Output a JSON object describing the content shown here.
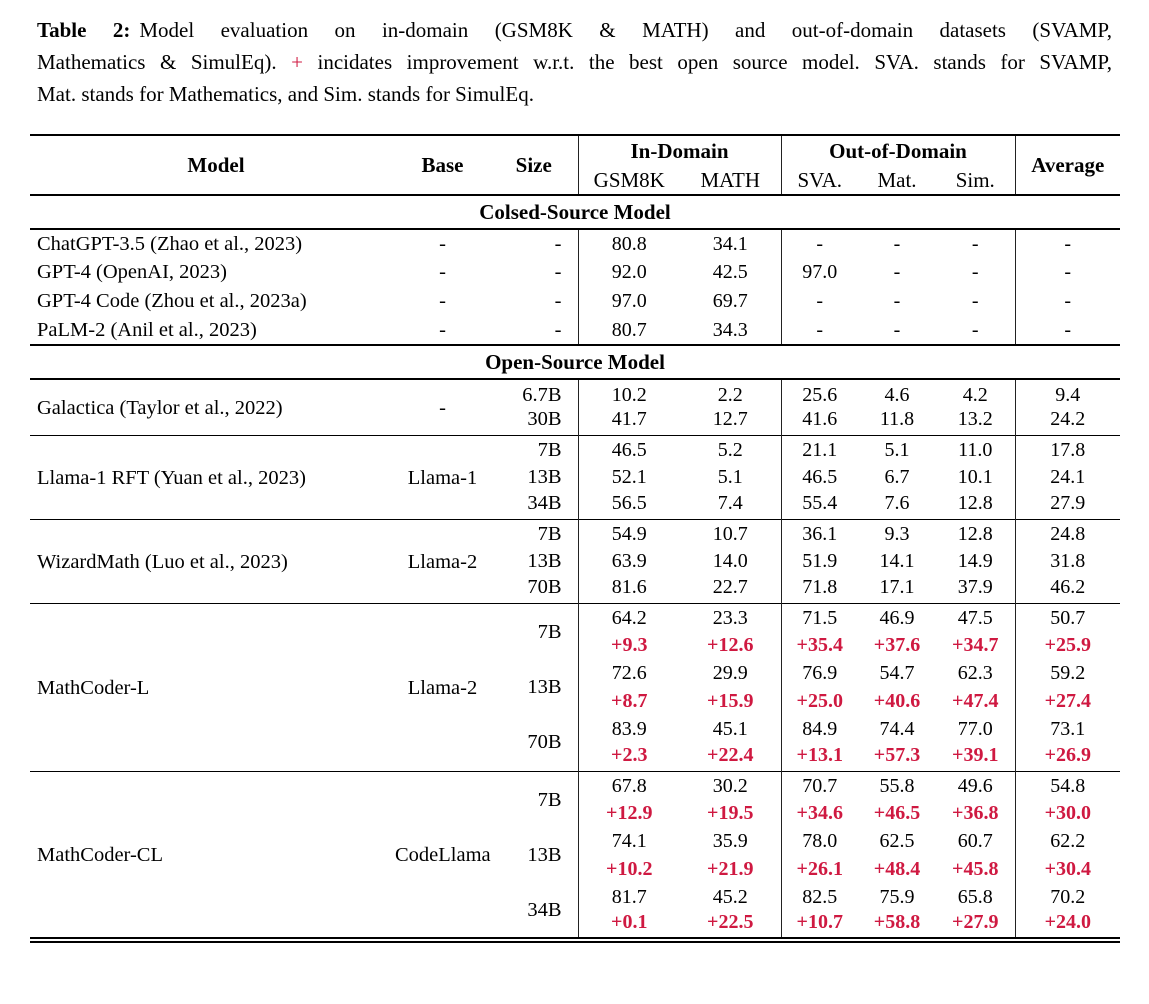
{
  "colors": {
    "improvement_red": "#cf1941"
  },
  "caption": {
    "label": "Table 2:",
    "line1": "Model evaluation on in-domain (GSM8K & MATH) and out-of-domain datasets (SVAMP,",
    "line2_pre": "Mathematics & SimulEq). ",
    "line2_plus": "+",
    "line2_post": " incidates improvement w.r.t. the best open source model. SVA. stands for SVAMP,",
    "line3": "Mat. stands for Mathematics, and Sim. stands for SimulEq."
  },
  "table": {
    "header": {
      "model": "Model",
      "base": "Base",
      "size": "Size",
      "in_domain": "In-Domain",
      "out_of_domain": "Out-of-Domain",
      "average": "Average",
      "sub": [
        "GSM8K",
        "MATH",
        "SVA.",
        "Mat.",
        "Sim."
      ]
    },
    "sections": [
      {
        "title": "Colsed-Source Model",
        "groups": [
          {
            "model": "ChatGPT-3.5 (Zhao et al., 2023)",
            "base": "-",
            "rows": [
              {
                "size": "-",
                "values": [
                  "80.8",
                  "34.1",
                  "-",
                  "-",
                  "-",
                  "-"
                ]
              }
            ]
          },
          {
            "model": "GPT-4 (OpenAI, 2023)",
            "base": "-",
            "rows": [
              {
                "size": "-",
                "values": [
                  "92.0",
                  "42.5",
                  "97.0",
                  "-",
                  "-",
                  "-"
                ]
              }
            ]
          },
          {
            "model": "GPT-4 Code (Zhou et al., 2023a)",
            "base": "-",
            "rows": [
              {
                "size": "-",
                "values": [
                  "97.0",
                  "69.7",
                  "-",
                  "-",
                  "-",
                  "-"
                ]
              }
            ]
          },
          {
            "model": "PaLM-2 (Anil et al., 2023)",
            "base": "-",
            "rows": [
              {
                "size": "-",
                "values": [
                  "80.7",
                  "34.3",
                  "-",
                  "-",
                  "-",
                  "-"
                ]
              }
            ]
          }
        ]
      },
      {
        "title": "Open-Source Model",
        "groups": [
          {
            "model": "Galactica (Taylor et al., 2022)",
            "base": "-",
            "rows": [
              {
                "size": "6.7B",
                "values": [
                  "10.2",
                  "2.2",
                  "25.6",
                  "4.6",
                  "4.2",
                  "9.4"
                ]
              },
              {
                "size": "30B",
                "values": [
                  "41.7",
                  "12.7",
                  "41.6",
                  "11.8",
                  "13.2",
                  "24.2"
                ]
              }
            ]
          },
          {
            "model": "Llama-1 RFT (Yuan et al., 2023)",
            "base": "Llama-1",
            "rows": [
              {
                "size": "7B",
                "values": [
                  "46.5",
                  "5.2",
                  "21.1",
                  "5.1",
                  "11.0",
                  "17.8"
                ]
              },
              {
                "size": "13B",
                "values": [
                  "52.1",
                  "5.1",
                  "46.5",
                  "6.7",
                  "10.1",
                  "24.1"
                ]
              },
              {
                "size": "34B",
                "values": [
                  "56.5",
                  "7.4",
                  "55.4",
                  "7.6",
                  "12.8",
                  "27.9"
                ]
              }
            ]
          },
          {
            "model": "WizardMath (Luo et al., 2023)",
            "base": "Llama-2",
            "rows": [
              {
                "size": "7B",
                "values": [
                  "54.9",
                  "10.7",
                  "36.1",
                  "9.3",
                  "12.8",
                  "24.8"
                ]
              },
              {
                "size": "13B",
                "values": [
                  "63.9",
                  "14.0",
                  "51.9",
                  "14.1",
                  "14.9",
                  "31.8"
                ]
              },
              {
                "size": "70B",
                "values": [
                  "81.6",
                  "22.7",
                  "71.8",
                  "17.1",
                  "37.9",
                  "46.2"
                ]
              }
            ]
          },
          {
            "model": "MathCoder-L",
            "base": "Llama-2",
            "rows": [
              {
                "size": "7B",
                "values": [
                  "64.2",
                  "23.3",
                  "71.5",
                  "46.9",
                  "47.5",
                  "50.7"
                ],
                "improvement": [
                  "+9.3",
                  "+12.6",
                  "+35.4",
                  "+37.6",
                  "+34.7",
                  "+25.9"
                ]
              },
              {
                "size": "13B",
                "values": [
                  "72.6",
                  "29.9",
                  "76.9",
                  "54.7",
                  "62.3",
                  "59.2"
                ],
                "improvement": [
                  "+8.7",
                  "+15.9",
                  "+25.0",
                  "+40.6",
                  "+47.4",
                  "+27.4"
                ]
              },
              {
                "size": "70B",
                "values": [
                  "83.9",
                  "45.1",
                  "84.9",
                  "74.4",
                  "77.0",
                  "73.1"
                ],
                "improvement": [
                  "+2.3",
                  "+22.4",
                  "+13.1",
                  "+57.3",
                  "+39.1",
                  "+26.9"
                ]
              }
            ]
          },
          {
            "model": "MathCoder-CL",
            "base": "CodeLlama",
            "rows": [
              {
                "size": "7B",
                "values": [
                  "67.8",
                  "30.2",
                  "70.7",
                  "55.8",
                  "49.6",
                  "54.8"
                ],
                "improvement": [
                  "+12.9",
                  "+19.5",
                  "+34.6",
                  "+46.5",
                  "+36.8",
                  "+30.0"
                ]
              },
              {
                "size": "13B",
                "values": [
                  "74.1",
                  "35.9",
                  "78.0",
                  "62.5",
                  "60.7",
                  "62.2"
                ],
                "improvement": [
                  "+10.2",
                  "+21.9",
                  "+26.1",
                  "+48.4",
                  "+45.8",
                  "+30.4"
                ]
              },
              {
                "size": "34B",
                "values": [
                  "81.7",
                  "45.2",
                  "82.5",
                  "75.9",
                  "65.8",
                  "70.2"
                ],
                "improvement": [
                  "+0.1",
                  "+22.5",
                  "+10.7",
                  "+58.8",
                  "+27.9",
                  "+24.0"
                ]
              }
            ]
          }
        ]
      }
    ]
  }
}
